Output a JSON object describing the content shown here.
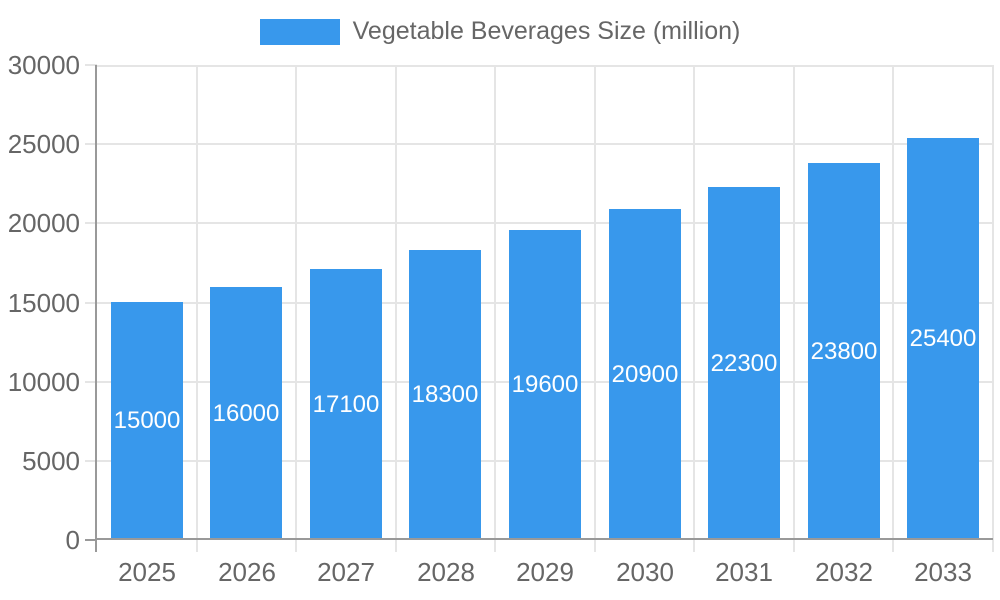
{
  "chart_data": {
    "type": "bar",
    "title": "Vegetable Beverages Size (million)",
    "legend": [
      "Vegetable Beverages Size (million)"
    ],
    "legend_position": "top",
    "categories": [
      "2025",
      "2026",
      "2027",
      "2028",
      "2029",
      "2030",
      "2031",
      "2032",
      "2033"
    ],
    "values": [
      15000,
      16000,
      17100,
      18300,
      19600,
      20900,
      22300,
      23800,
      25400
    ],
    "bar_value_labels": [
      "15000",
      "16000",
      "17100",
      "18300",
      "19600",
      "20900",
      "22300",
      "23800",
      "25400"
    ],
    "xlabel": "",
    "ylabel": "",
    "ylim": [
      0,
      30000
    ],
    "yticks": [
      0,
      5000,
      10000,
      15000,
      20000,
      25000,
      30000
    ],
    "ytick_labels": [
      "0",
      "5000",
      "10000",
      "15000",
      "20000",
      "25000",
      "30000"
    ],
    "grid": true,
    "colors": {
      "bar": "#3898ec",
      "bar_label_text": "#ffffff",
      "axis_text": "#666666",
      "gridline": "#e5e5e5",
      "axis_line": "#999999",
      "background": "#ffffff"
    }
  }
}
